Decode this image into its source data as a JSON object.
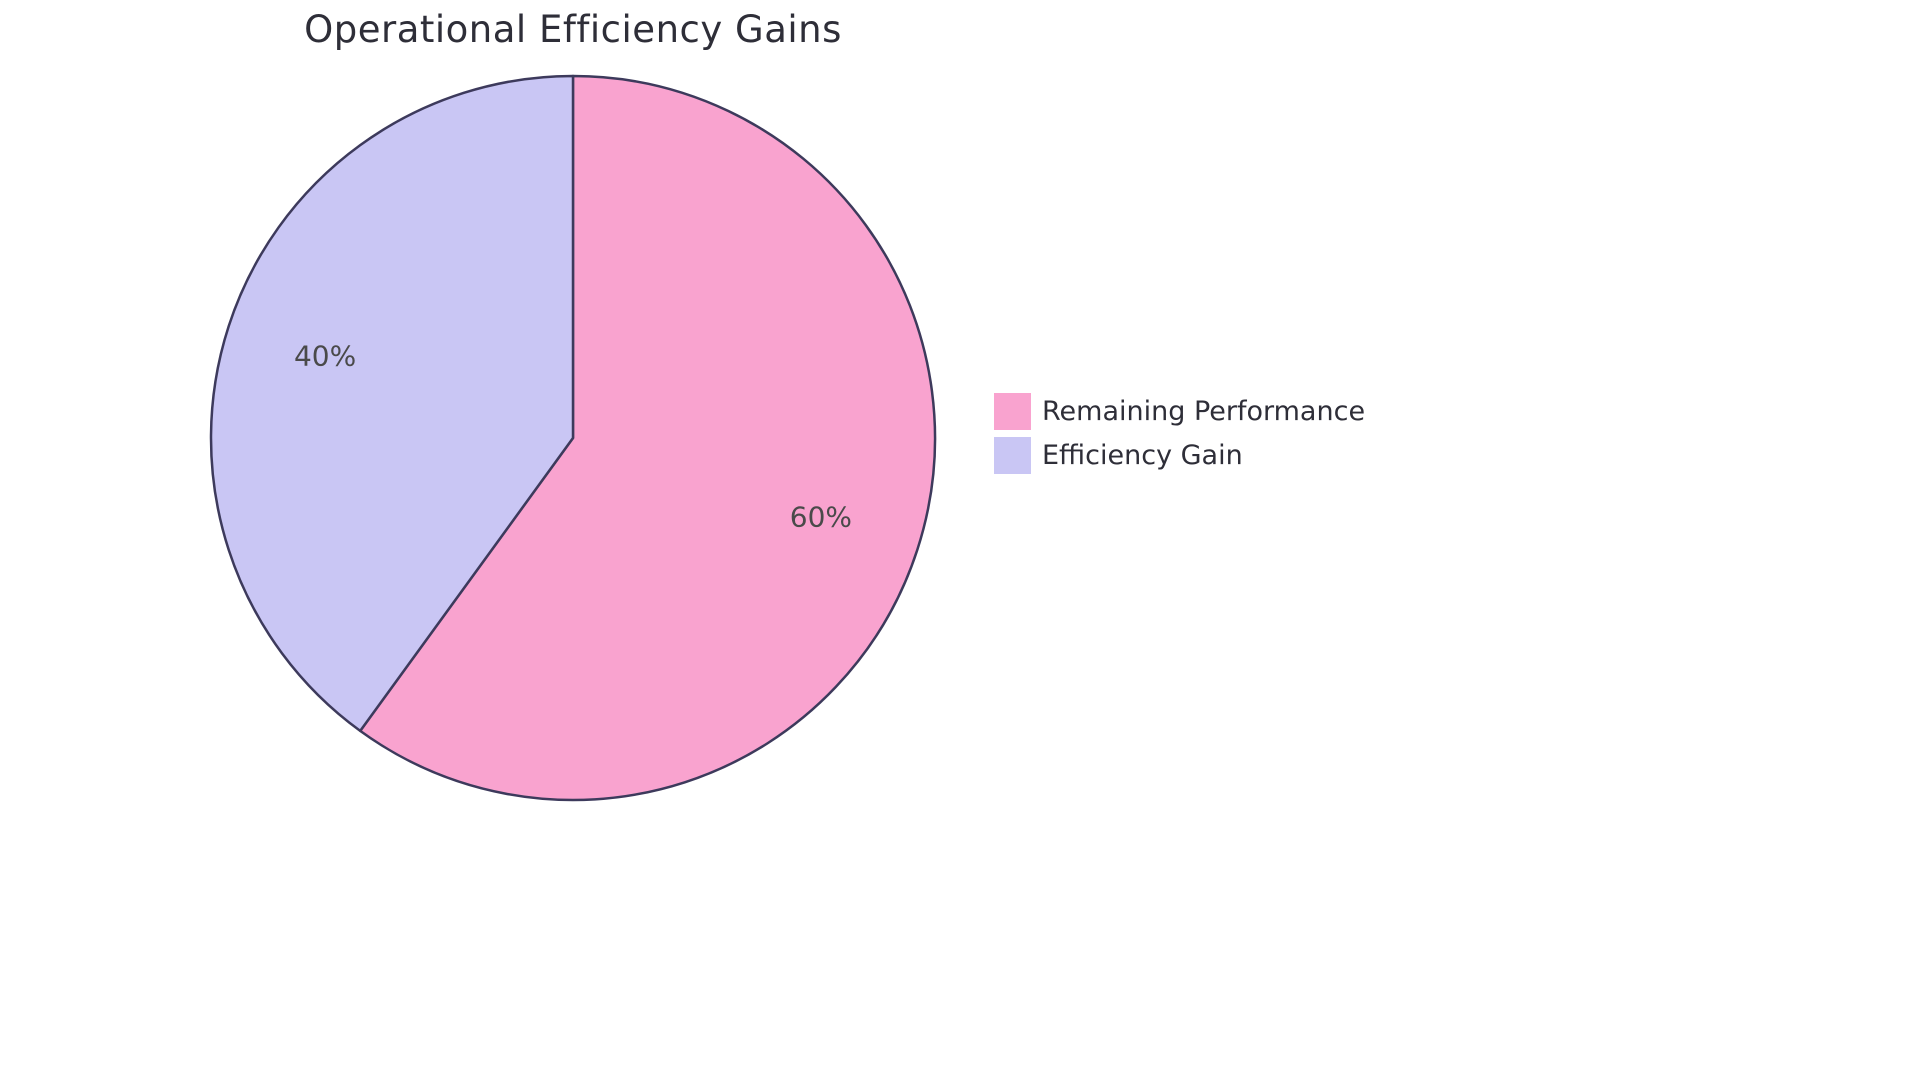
{
  "chart_data": {
    "type": "pie",
    "title": "Operational Efficiency Gains",
    "legend_position": "right",
    "direction": "clockwise",
    "start_angle_deg": 0,
    "stroke_color": "#3d3a5c",
    "label_color": "#4a4a4a",
    "slices": [
      {
        "label": "Remaining Performance",
        "value": 60,
        "display": "60%",
        "color": "#f9a3cf"
      },
      {
        "label": "Efficiency Gain",
        "value": 40,
        "display": "40%",
        "color": "#c9c6f4"
      }
    ]
  }
}
